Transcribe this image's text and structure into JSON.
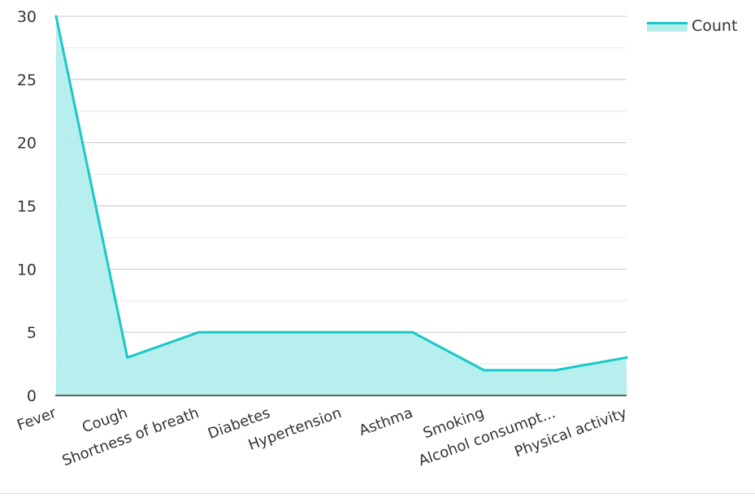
{
  "chart_data": {
    "type": "area",
    "categories": [
      "Fever",
      "Cough",
      "Shortness of breath",
      "Diabetes",
      "Hypertension",
      "Asthma",
      "Smoking",
      "Alcohol consumpt...",
      "Physical activity"
    ],
    "series": [
      {
        "name": "Count",
        "values": [
          30,
          3,
          5,
          5,
          5,
          5,
          2,
          2,
          3
        ]
      }
    ],
    "y_ticks": [
      0,
      5,
      10,
      15,
      20,
      25,
      30
    ],
    "ylim": [
      0,
      30
    ],
    "grid": true,
    "legend_position": "top-right",
    "colors": {
      "line": "#19c8c8",
      "fill": "#b2eeec",
      "grid": "#c8c8c8",
      "grid_minor": "#e6e6e6",
      "axis": "#333333"
    }
  }
}
